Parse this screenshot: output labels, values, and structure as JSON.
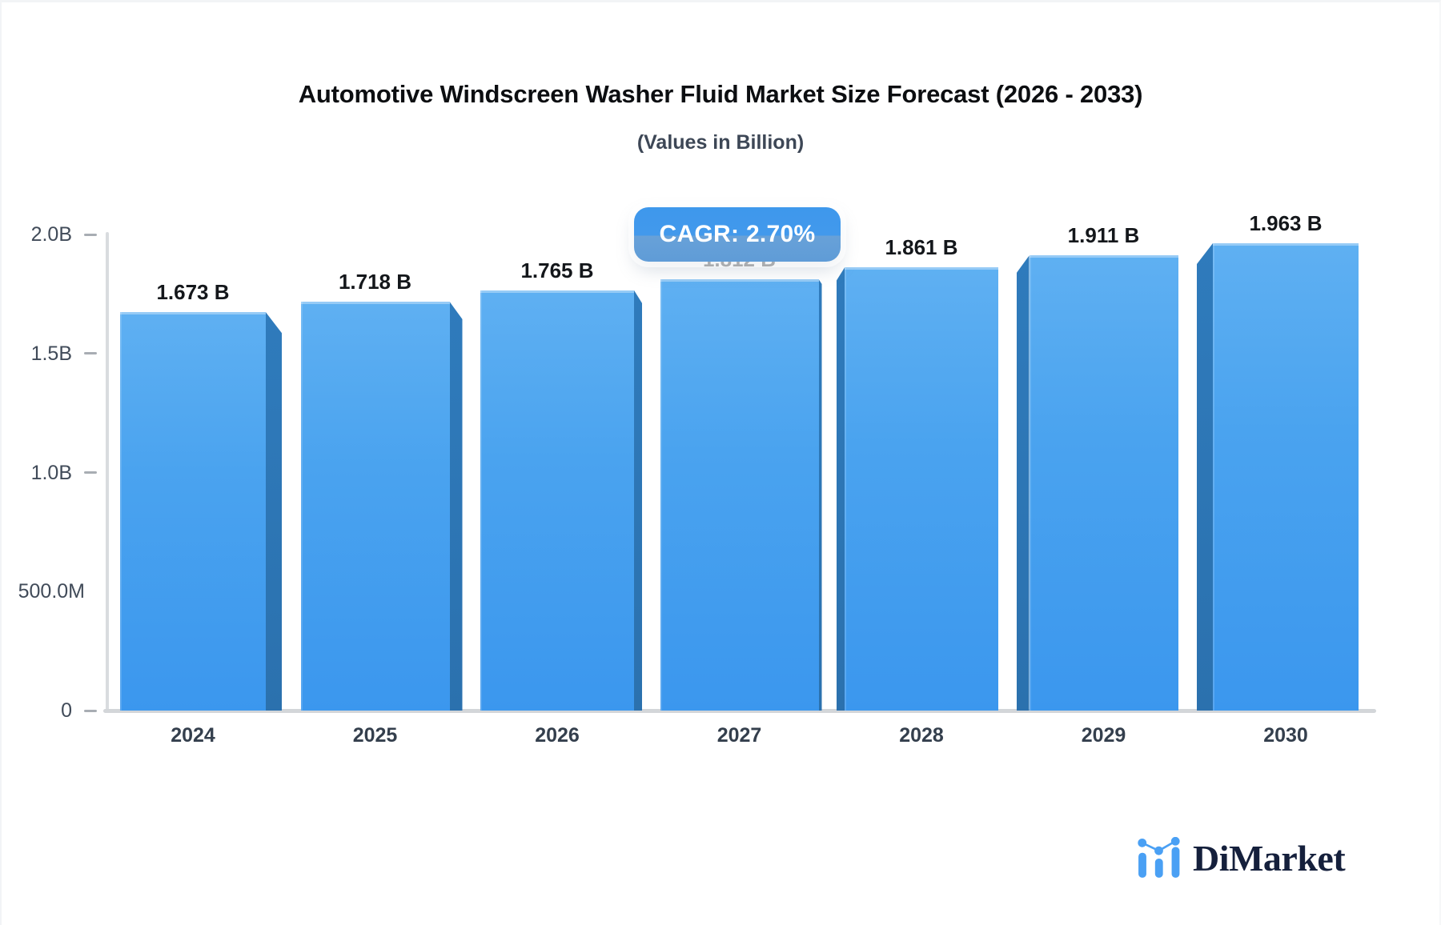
{
  "title": "Automotive Windscreen Washer Fluid Market Size Forecast (2026 - 2033)",
  "subtitle": "(Values in Billion)",
  "cagr_badge": "CAGR: 2.70%",
  "chart_data": {
    "type": "bar",
    "title": "Automotive Windscreen Washer Fluid Market Size Forecast (2026 - 2033)",
    "subtitle": "(Values in Billion)",
    "categories": [
      "2024",
      "2025",
      "2026",
      "2027",
      "2028",
      "2029",
      "2030"
    ],
    "values": [
      1.673,
      1.718,
      1.765,
      1.812,
      1.861,
      1.911,
      1.963
    ],
    "bar_labels": [
      "1.673 B",
      "1.718 B",
      "1.765 B",
      "1.812 B",
      "1.861 B",
      "1.911 B",
      "1.963 B"
    ],
    "xlabel": "",
    "ylabel": "",
    "ylim": [
      0,
      2.0
    ],
    "yticks": [
      {
        "label": "0",
        "value": 0.0,
        "dash": true
      },
      {
        "label": "500.0M",
        "value": 0.5,
        "dash": false
      },
      {
        "label": "1.0B",
        "value": 1.0,
        "dash": true
      },
      {
        "label": "1.5B",
        "value": 1.5,
        "dash": true
      },
      {
        "label": "2.0B",
        "value": 2.0,
        "dash": true
      }
    ],
    "annotation": "CAGR: 2.70%",
    "legend": false,
    "grid": false,
    "style_3d": true,
    "colors": {
      "bar_face_top": "#5fb0f2",
      "bar_face_bottom": "#3b97ee",
      "bar_side": "#2e77b7",
      "badge_blue": "#3e98ec",
      "axis_gray": "#d6d9dc",
      "label_dark": "#14171b"
    }
  },
  "logo": {
    "text": "DiMarket",
    "icon": "bar-line-chart-icon"
  }
}
